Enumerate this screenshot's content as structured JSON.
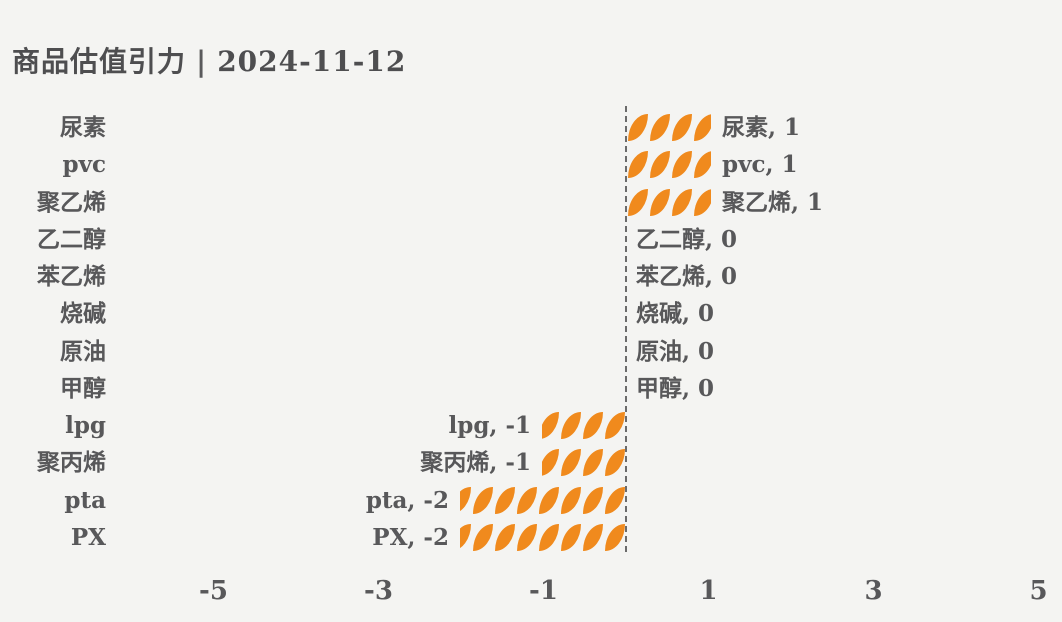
{
  "header": {
    "title": "商品估值引力",
    "separator": "|",
    "date": "2024-11-12"
  },
  "chart_data": {
    "type": "bar",
    "orientation": "horizontal",
    "pictogram_symbol": "leaf",
    "title": "商品估值引力 | 2024-11-12",
    "categories": [
      "尿素",
      "pvc",
      "聚乙烯",
      "乙二醇",
      "苯乙烯",
      "烧碱",
      "原油",
      "甲醇",
      "lpg",
      "聚丙烯",
      "pta",
      "PX"
    ],
    "values": [
      1,
      1,
      1,
      0,
      0,
      0,
      0,
      0,
      -1,
      -1,
      -2,
      -2
    ],
    "point_labels": [
      "尿素, 1",
      "pvc, 1",
      "聚乙烯, 1",
      "乙二醇, 0",
      "苯乙烯, 0",
      "烧碱, 0",
      "原油, 0",
      "甲醇, 0",
      "lpg, -1",
      "聚丙烯, -1",
      "pta, -2",
      "PX, -2"
    ],
    "x_ticks": [
      "-5",
      "-3",
      "-1",
      "1",
      "3",
      "5"
    ],
    "x_tick_values": [
      -5,
      -3,
      -1,
      1,
      3,
      5
    ],
    "xlim": [
      -5.5,
      5.3
    ],
    "grid": false,
    "zero_line": "dashed",
    "legend": "none",
    "xlabel": "",
    "ylabel": "",
    "bar_color": "#F08A1D",
    "text_color": "#58585A",
    "background_color": "#F4F4F2"
  }
}
